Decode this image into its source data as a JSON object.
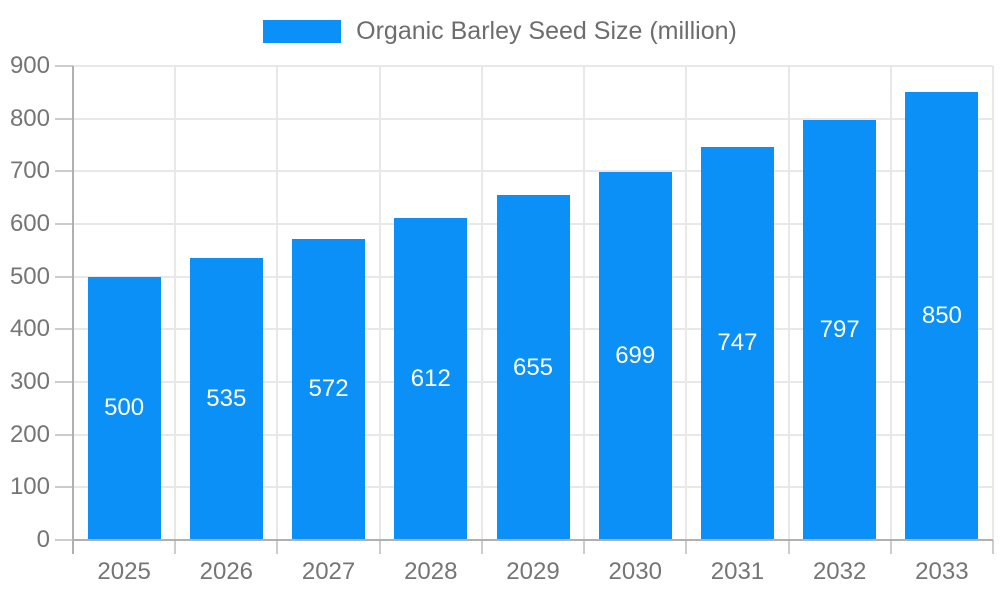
{
  "chart_data": {
    "type": "bar",
    "title": "Organic Barley Seed Size (million)",
    "categories": [
      "2025",
      "2026",
      "2027",
      "2028",
      "2029",
      "2030",
      "2031",
      "2032",
      "2033"
    ],
    "values": [
      500,
      535,
      572,
      612,
      655,
      699,
      747,
      797,
      850
    ],
    "y_ticks": [
      0,
      100,
      200,
      300,
      400,
      500,
      600,
      700,
      800,
      900
    ],
    "ylim": [
      0,
      900
    ],
    "xlabel": "",
    "ylabel": "",
    "legend_position": "top-center",
    "grid": true,
    "colors": {
      "bar": "#0a90f6",
      "grid": "#e8e8e8",
      "axis": "#b0b0b0",
      "tick": "#cccccc",
      "tick_label": "#757575",
      "legend_text": "#6d6d6d",
      "value_label": "#ffffff",
      "background": "#ffffff"
    }
  }
}
